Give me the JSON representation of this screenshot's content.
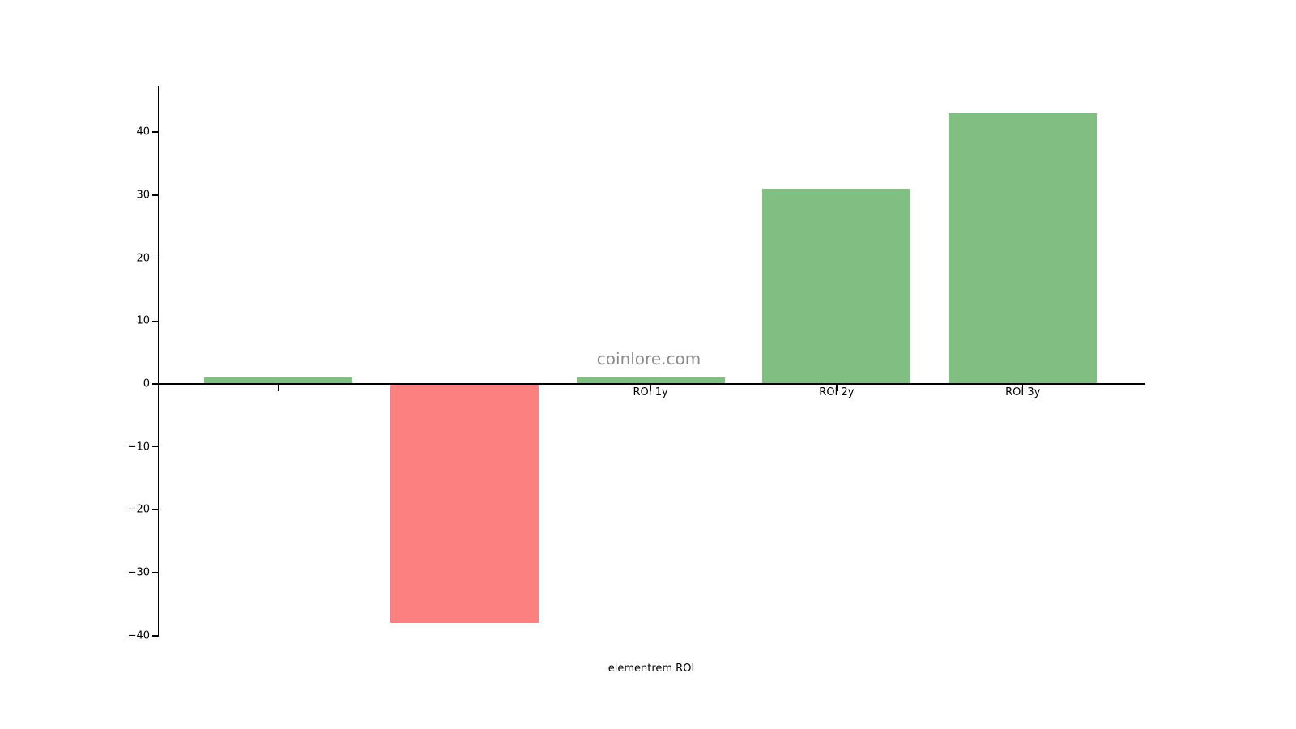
{
  "page": {
    "background_color": "#ffffff",
    "axis_color": "#000000"
  },
  "watermark": {
    "text": "coinlore.com",
    "color": "#8a8a8a"
  },
  "chart_data": {
    "type": "bar",
    "title": "",
    "xlabel": "elementrem ROI",
    "ylabel": "",
    "categories": [
      "",
      "",
      "ROI 1y",
      "ROI 2y",
      "ROI 3y"
    ],
    "values": [
      1,
      -38,
      1,
      31,
      43
    ],
    "bar_colors": [
      "#81be81",
      "#fc8080",
      "#81be81",
      "#81be81",
      "#81be81"
    ],
    "positive_color": "#81be81",
    "negative_color": "#fc8080",
    "yticks": [
      40,
      30,
      20,
      10,
      0,
      -10,
      -20,
      -30,
      -40
    ],
    "ylim": [
      -40.2,
      47.4
    ],
    "grid": false,
    "legend": null
  }
}
